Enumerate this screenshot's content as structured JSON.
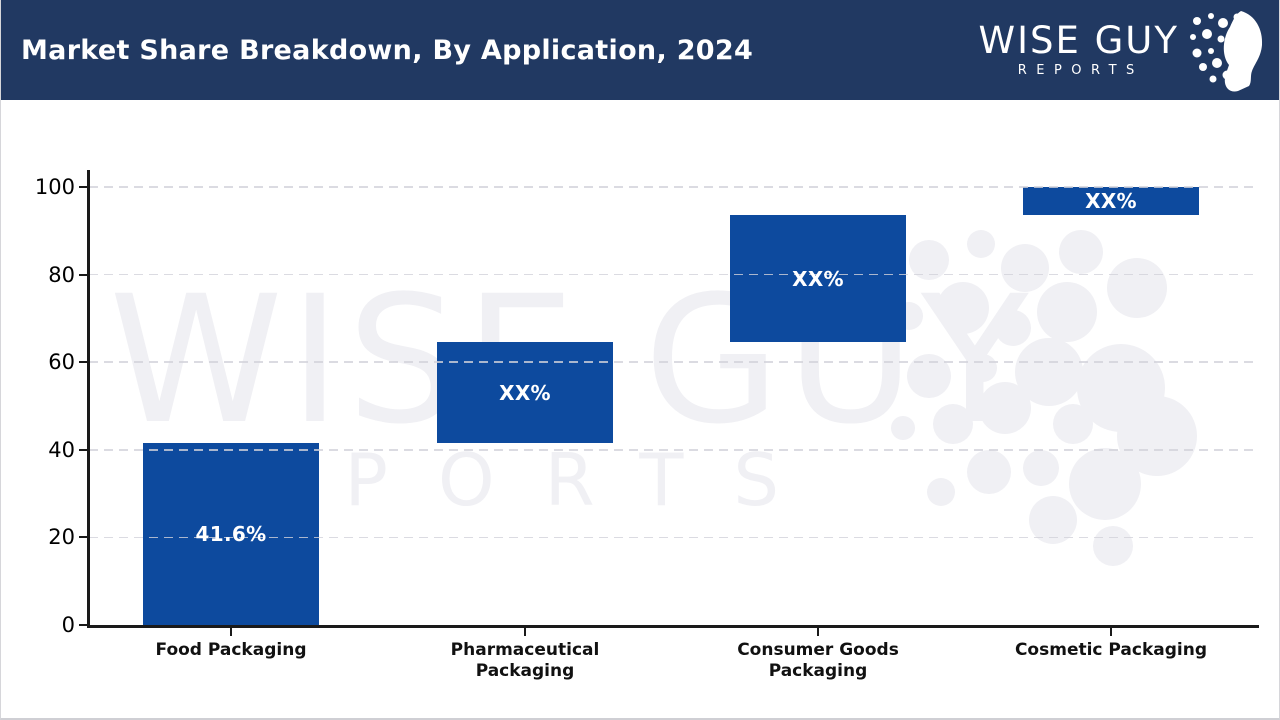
{
  "header": {
    "title": "Market Share Breakdown, By Application, 2024",
    "bg_color": "#213962",
    "logo": {
      "wordmark": "WISE GUY",
      "subtext": "REPORTS",
      "icon": "dotted-face-profile"
    }
  },
  "watermark": {
    "wordmark": "WISE GUY",
    "subtext": "REPORTS",
    "icon": "dotted-face-profile"
  },
  "chart_data": {
    "type": "bar",
    "variant": "waterfall",
    "title": "Market Share Breakdown, By Application, 2024",
    "categories": [
      "Food Packaging",
      "Pharmaceutical Packaging",
      "Consumer Goods Packaging",
      "Cosmetic Packaging"
    ],
    "segments": [
      {
        "category": "Food Packaging",
        "start": 0,
        "end": 41.6,
        "label": "41.6%"
      },
      {
        "category": "Pharmaceutical Packaging",
        "start": 41.6,
        "end": 64.5,
        "label": "XX%"
      },
      {
        "category": "Consumer Goods Packaging",
        "start": 64.5,
        "end": 93.6,
        "label": "XX%"
      },
      {
        "category": "Cosmetic Packaging",
        "start": 93.6,
        "end": 100,
        "label": "XX%"
      }
    ],
    "ylim": [
      0,
      100
    ],
    "yticks": [
      0,
      20,
      40,
      60,
      80,
      100
    ],
    "xlabel": "",
    "ylabel": "",
    "bar_color": "#0d4a9e",
    "bar_value_label_color": "#ffffff",
    "grid": "horizontal-dashed",
    "legend": "none"
  }
}
